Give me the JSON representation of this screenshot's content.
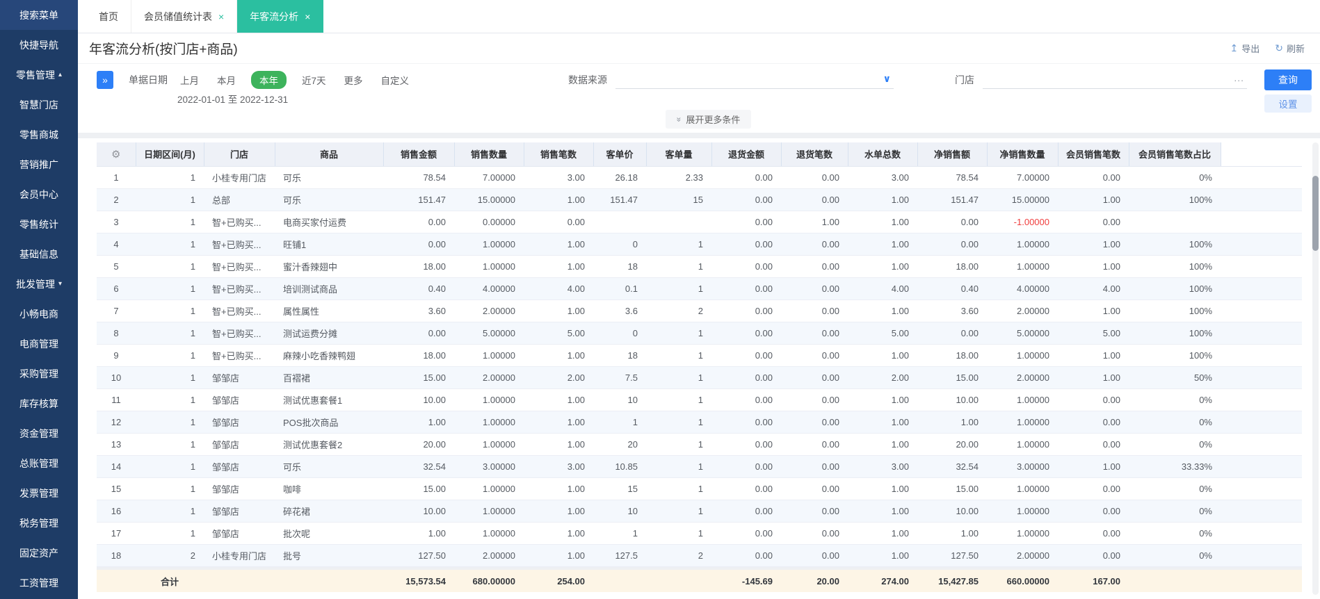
{
  "sidebar": {
    "items": [
      {
        "id": "search-menu",
        "label": "搜索菜单",
        "type": "item"
      },
      {
        "id": "quick-nav",
        "label": "快捷导航",
        "type": "item"
      },
      {
        "id": "retail-management",
        "label": "零售管理",
        "type": "group",
        "caret": "up"
      },
      {
        "id": "smart-store",
        "label": "智慧门店",
        "type": "sub"
      },
      {
        "id": "retail-mall",
        "label": "零售商城",
        "type": "sub"
      },
      {
        "id": "marketing",
        "label": "营销推广",
        "type": "sub"
      },
      {
        "id": "member-center",
        "label": "会员中心",
        "type": "sub"
      },
      {
        "id": "retail-stats",
        "label": "零售统计",
        "type": "sub"
      },
      {
        "id": "basic-info",
        "label": "基础信息",
        "type": "sub"
      },
      {
        "id": "wholesale-management",
        "label": "批发管理",
        "type": "group",
        "caret": "down"
      },
      {
        "id": "xiaochang-ecommerce",
        "label": "小畅电商",
        "type": "item"
      },
      {
        "id": "ecommerce-management",
        "label": "电商管理",
        "type": "item"
      },
      {
        "id": "purchase-management",
        "label": "采购管理",
        "type": "item"
      },
      {
        "id": "inventory-accounting",
        "label": "库存核算",
        "type": "item"
      },
      {
        "id": "fund-management",
        "label": "资金管理",
        "type": "item"
      },
      {
        "id": "general-ledger",
        "label": "总账管理",
        "type": "item"
      },
      {
        "id": "invoice-management",
        "label": "发票管理",
        "type": "item"
      },
      {
        "id": "tax-management",
        "label": "税务管理",
        "type": "item"
      },
      {
        "id": "fixed-assets",
        "label": "固定资产",
        "type": "item"
      },
      {
        "id": "payroll",
        "label": "工资管理",
        "type": "item"
      }
    ]
  },
  "tabs": [
    {
      "id": "home",
      "label": "首页",
      "closable": false,
      "active": false
    },
    {
      "id": "member-stored-value-report",
      "label": "会员储值统计表",
      "closable": true,
      "active": false
    },
    {
      "id": "annual-customer-flow",
      "label": "年客流分析",
      "closable": true,
      "active": true
    }
  ],
  "page": {
    "title": "年客流分析(按门店+商品)",
    "export_label": "导出",
    "refresh_label": "刷新"
  },
  "filters": {
    "date_label": "单据日期",
    "date_options": [
      {
        "id": "last-month",
        "label": "上月",
        "selected": false
      },
      {
        "id": "this-month",
        "label": "本月",
        "selected": false
      },
      {
        "id": "this-year",
        "label": "本年",
        "selected": true
      },
      {
        "id": "last-7-days",
        "label": "近7天",
        "selected": false
      },
      {
        "id": "more",
        "label": "更多",
        "selected": false
      },
      {
        "id": "custom",
        "label": "自定义",
        "selected": false
      }
    ],
    "date_range": "2022-01-01 至 2022-12-31",
    "source_label": "数据来源",
    "store_label": "门店",
    "store_more": "...",
    "query_label": "查询",
    "settings_label": "设置",
    "expand_label": "展开更多条件"
  },
  "colors": {
    "accent_blue": "#2d7ff7",
    "active_tab_teal": "#2bbfa0",
    "selected_pill_green": "#3db35c",
    "negative_red": "#f03e3e",
    "total_row_cream": "#fdf5e6",
    "sidebar_navy": "#1e3c66"
  },
  "table": {
    "gear_icon": "⚙",
    "columns": [
      "日期区间(月)",
      "门店",
      "商品",
      "销售金额",
      "销售数量",
      "销售笔数",
      "客单价",
      "客单量",
      "退货金额",
      "退货笔数",
      "水单总数",
      "净销售额",
      "净销售数量",
      "会员销售笔数",
      "会员销售笔数占比"
    ],
    "rows": [
      [
        "1",
        "1",
        "小桂专用门店",
        "可乐",
        "78.54",
        "7.00000",
        "3.00",
        "26.18",
        "2.33",
        "0.00",
        "0.00",
        "3.00",
        "78.54",
        "7.00000",
        "0.00",
        "0%"
      ],
      [
        "2",
        "1",
        "总部",
        "可乐",
        "151.47",
        "15.00000",
        "1.00",
        "151.47",
        "15",
        "0.00",
        "0.00",
        "1.00",
        "151.47",
        "15.00000",
        "1.00",
        "100%"
      ],
      [
        "3",
        "1",
        "智+已购买...",
        "电商买家付运费",
        "0.00",
        "0.00000",
        "0.00",
        "",
        "",
        "0.00",
        "1.00",
        "1.00",
        "0.00",
        "-1.00000",
        "0.00",
        ""
      ],
      [
        "4",
        "1",
        "智+已购买...",
        "旺铺1",
        "0.00",
        "1.00000",
        "1.00",
        "0",
        "1",
        "0.00",
        "0.00",
        "1.00",
        "0.00",
        "1.00000",
        "1.00",
        "100%"
      ],
      [
        "5",
        "1",
        "智+已购买...",
        "蜜汁香辣翅中",
        "18.00",
        "1.00000",
        "1.00",
        "18",
        "1",
        "0.00",
        "0.00",
        "1.00",
        "18.00",
        "1.00000",
        "1.00",
        "100%"
      ],
      [
        "6",
        "1",
        "智+已购买...",
        "培训测试商品",
        "0.40",
        "4.00000",
        "4.00",
        "0.1",
        "1",
        "0.00",
        "0.00",
        "4.00",
        "0.40",
        "4.00000",
        "4.00",
        "100%"
      ],
      [
        "7",
        "1",
        "智+已购买...",
        "属性属性",
        "3.60",
        "2.00000",
        "1.00",
        "3.6",
        "2",
        "0.00",
        "0.00",
        "1.00",
        "3.60",
        "2.00000",
        "1.00",
        "100%"
      ],
      [
        "8",
        "1",
        "智+已购买...",
        "测试运费分摊",
        "0.00",
        "5.00000",
        "5.00",
        "0",
        "1",
        "0.00",
        "0.00",
        "5.00",
        "0.00",
        "5.00000",
        "5.00",
        "100%"
      ],
      [
        "9",
        "1",
        "智+已购买...",
        "麻辣小吃香辣鸭翅",
        "18.00",
        "1.00000",
        "1.00",
        "18",
        "1",
        "0.00",
        "0.00",
        "1.00",
        "18.00",
        "1.00000",
        "1.00",
        "100%"
      ],
      [
        "10",
        "1",
        "邹邹店",
        "百褶裙",
        "15.00",
        "2.00000",
        "2.00",
        "7.5",
        "1",
        "0.00",
        "0.00",
        "2.00",
        "15.00",
        "2.00000",
        "1.00",
        "50%"
      ],
      [
        "11",
        "1",
        "邹邹店",
        "测试优惠套餐1",
        "10.00",
        "1.00000",
        "1.00",
        "10",
        "1",
        "0.00",
        "0.00",
        "1.00",
        "10.00",
        "1.00000",
        "0.00",
        "0%"
      ],
      [
        "12",
        "1",
        "邹邹店",
        "POS批次商品",
        "1.00",
        "1.00000",
        "1.00",
        "1",
        "1",
        "0.00",
        "0.00",
        "1.00",
        "1.00",
        "1.00000",
        "0.00",
        "0%"
      ],
      [
        "13",
        "1",
        "邹邹店",
        "测试优惠套餐2",
        "20.00",
        "1.00000",
        "1.00",
        "20",
        "1",
        "0.00",
        "0.00",
        "1.00",
        "20.00",
        "1.00000",
        "0.00",
        "0%"
      ],
      [
        "14",
        "1",
        "邹邹店",
        "可乐",
        "32.54",
        "3.00000",
        "3.00",
        "10.85",
        "1",
        "0.00",
        "0.00",
        "3.00",
        "32.54",
        "3.00000",
        "1.00",
        "33.33%"
      ],
      [
        "15",
        "1",
        "邹邹店",
        "咖啡",
        "15.00",
        "1.00000",
        "1.00",
        "15",
        "1",
        "0.00",
        "0.00",
        "1.00",
        "15.00",
        "1.00000",
        "0.00",
        "0%"
      ],
      [
        "16",
        "1",
        "邹邹店",
        "碎花裙",
        "10.00",
        "1.00000",
        "1.00",
        "10",
        "1",
        "0.00",
        "0.00",
        "1.00",
        "10.00",
        "1.00000",
        "0.00",
        "0%"
      ],
      [
        "17",
        "1",
        "邹邹店",
        "批次呢",
        "1.00",
        "1.00000",
        "1.00",
        "1",
        "1",
        "0.00",
        "0.00",
        "1.00",
        "1.00",
        "1.00000",
        "0.00",
        "0%"
      ],
      [
        "18",
        "2",
        "小桂专用门店",
        "批号",
        "127.50",
        "2.00000",
        "1.00",
        "127.5",
        "2",
        "0.00",
        "0.00",
        "1.00",
        "127.50",
        "2.00000",
        "0.00",
        "0%"
      ]
    ],
    "total": {
      "label": "合计",
      "values": [
        "15,573.54",
        "680.00000",
        "254.00",
        "",
        "",
        "-145.69",
        "20.00",
        "274.00",
        "15,427.85",
        "660.00000",
        "167.00",
        ""
      ]
    }
  }
}
